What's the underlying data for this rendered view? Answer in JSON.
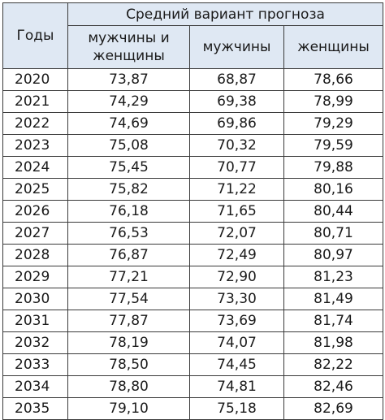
{
  "table": {
    "header_years": "Годы",
    "header_group": "Средний вариант прогноза",
    "columns": [
      "мужчины и женщины",
      "мужчины",
      "женщины"
    ],
    "rows": [
      {
        "year": "2020",
        "both": "73,87",
        "men": "68,87",
        "women": "78,66"
      },
      {
        "year": "2021",
        "both": "74,29",
        "men": "69,38",
        "women": "78,99"
      },
      {
        "year": "2022",
        "both": "74,69",
        "men": "69,86",
        "women": "79,29"
      },
      {
        "year": "2023",
        "both": "75,08",
        "men": "70,32",
        "women": "79,59"
      },
      {
        "year": "2024",
        "both": "75,45",
        "men": "70,77",
        "women": "79,88"
      },
      {
        "year": "2025",
        "both": "75,82",
        "men": "71,22",
        "women": "80,16"
      },
      {
        "year": "2026",
        "both": "76,18",
        "men": "71,65",
        "women": "80,44"
      },
      {
        "year": "2027",
        "both": "76,53",
        "men": "72,07",
        "women": "80,71"
      },
      {
        "year": "2028",
        "both": "76,87",
        "men": "72,49",
        "women": "80,97"
      },
      {
        "year": "2029",
        "both": "77,21",
        "men": "72,90",
        "women": "81,23"
      },
      {
        "year": "2030",
        "both": "77,54",
        "men": "73,30",
        "women": "81,49"
      },
      {
        "year": "2031",
        "both": "77,87",
        "men": "73,69",
        "women": "81,74"
      },
      {
        "year": "2032",
        "both": "78,19",
        "men": "74,07",
        "women": "81,98"
      },
      {
        "year": "2033",
        "both": "78,50",
        "men": "74,45",
        "women": "82,22"
      },
      {
        "year": "2034",
        "both": "78,80",
        "men": "74,81",
        "women": "82,46"
      },
      {
        "year": "2035",
        "both": "79,10",
        "men": "75,18",
        "women": "82,69"
      }
    ]
  }
}
